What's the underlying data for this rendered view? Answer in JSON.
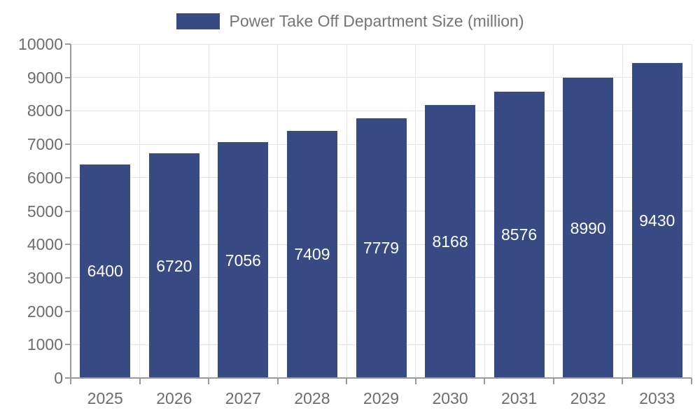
{
  "legend": {
    "label": "Power Take Off Department Size (million)"
  },
  "colors": {
    "bar": "#384A84",
    "grid": "#e3e3e8",
    "axis": "#9a9a9a",
    "tick_label": "#6d6d6d",
    "value_label": "#ffffff",
    "legend_text": "#757575",
    "background": "#ffffff"
  },
  "chart_data": {
    "type": "bar",
    "title": "Power Take Off Department Size (million)",
    "categories": [
      "2025",
      "2026",
      "2027",
      "2028",
      "2029",
      "2030",
      "2031",
      "2032",
      "2033"
    ],
    "values": [
      6400,
      6720,
      7056,
      7409,
      7779,
      8168,
      8576,
      8990,
      9430
    ],
    "xlabel": "",
    "ylabel": "",
    "ylim": [
      0,
      10000
    ],
    "ytick_step": 1000,
    "grid": true,
    "legend_position": "top",
    "value_labels": "inside-center"
  }
}
